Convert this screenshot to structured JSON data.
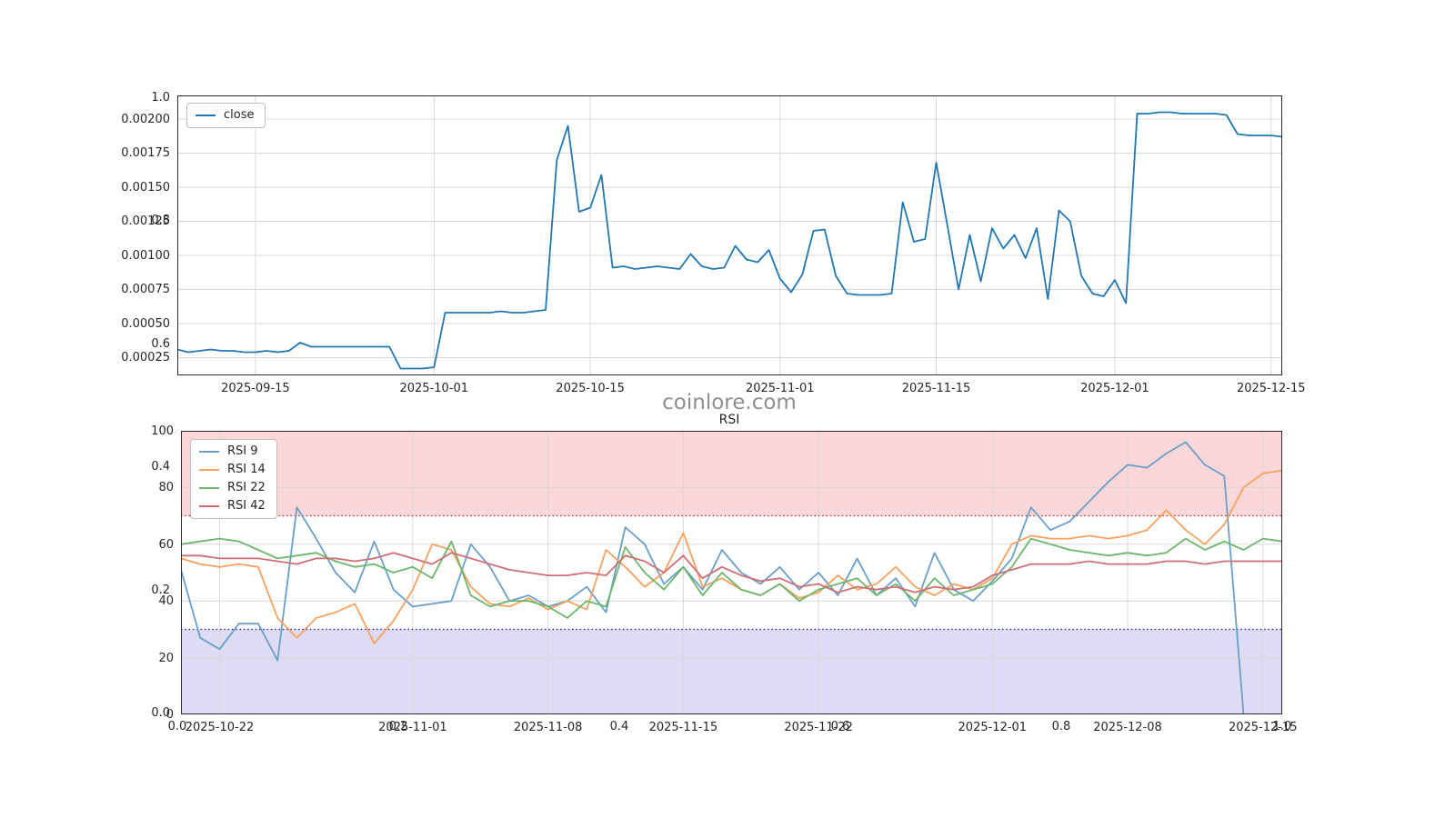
{
  "overlay": {
    "watermark": "coinlore.com",
    "left_ticks": [
      "1.0",
      "0.8",
      "0.6",
      "0.4",
      "0.2",
      "0.0"
    ],
    "bottom_ticks": [
      "0.0",
      "0.2",
      "0.4",
      "0.6",
      "0.8",
      "1.0"
    ]
  },
  "chart_data": [
    {
      "type": "line",
      "name": "price",
      "title": "",
      "legend_position": "upper-left",
      "grid": true,
      "x_start": "2025-09-08",
      "x_ticks": [
        {
          "label": "2025-09-15",
          "index": 7
        },
        {
          "label": "2025-10-01",
          "index": 23
        },
        {
          "label": "2025-10-15",
          "index": 37
        },
        {
          "label": "2025-11-01",
          "index": 54
        },
        {
          "label": "2025-11-15",
          "index": 68
        },
        {
          "label": "2025-12-01",
          "index": 84
        },
        {
          "label": "2025-12-15",
          "index": 98
        }
      ],
      "y_ticks": [
        {
          "label": "0.00025",
          "value": 0.00025
        },
        {
          "label": "0.00050",
          "value": 0.0005
        },
        {
          "label": "0.00075",
          "value": 0.00075
        },
        {
          "label": "0.00100",
          "value": 0.001
        },
        {
          "label": "0.00125",
          "value": 0.00125
        },
        {
          "label": "0.00150",
          "value": 0.0015
        },
        {
          "label": "0.00175",
          "value": 0.00175
        },
        {
          "label": "0.00200",
          "value": 0.002
        }
      ],
      "ylim": [
        0.00012,
        0.002173
      ],
      "series": [
        {
          "name": "close",
          "color": "#1f77b4",
          "values": [
            0.00031,
            0.00029,
            0.0003,
            0.00031,
            0.0003,
            0.0003,
            0.00029,
            0.00029,
            0.0003,
            0.00029,
            0.0003,
            0.00036,
            0.00033,
            0.00033,
            0.00033,
            0.00033,
            0.00033,
            0.00033,
            0.00033,
            0.00033,
            0.00017,
            0.00017,
            0.00017,
            0.00018,
            0.00058,
            0.00058,
            0.00058,
            0.00058,
            0.00058,
            0.00059,
            0.00058,
            0.00058,
            0.00059,
            0.0006,
            0.0017,
            0.00195,
            0.00132,
            0.00135,
            0.00159,
            0.00091,
            0.00092,
            0.0009,
            0.00091,
            0.00092,
            0.00091,
            0.0009,
            0.00101,
            0.00092,
            0.0009,
            0.00091,
            0.00107,
            0.00097,
            0.00095,
            0.00104,
            0.00083,
            0.00073,
            0.00086,
            0.00118,
            0.00119,
            0.00085,
            0.00072,
            0.00071,
            0.00071,
            0.00071,
            0.00072,
            0.00139,
            0.0011,
            0.00112,
            0.00168,
            0.00122,
            0.00075,
            0.00115,
            0.00081,
            0.0012,
            0.00105,
            0.00115,
            0.00098,
            0.0012,
            0.00068,
            0.00133,
            0.00125,
            0.00085,
            0.00072,
            0.0007,
            0.00082,
            0.00065,
            0.00204,
            0.00204,
            0.00205,
            0.00205,
            0.00204,
            0.00204,
            0.00204,
            0.00204,
            0.00203,
            0.00189,
            0.00188,
            0.00188,
            0.00188,
            0.00187
          ]
        }
      ]
    },
    {
      "type": "line",
      "name": "rsi",
      "title": "RSI",
      "legend_position": "upper-left",
      "grid": true,
      "x_start": "2025-10-20",
      "x_ticks": [
        {
          "label": "2025-10-22",
          "index": 2
        },
        {
          "label": "2025-11-01",
          "index": 12
        },
        {
          "label": "2025-11-08",
          "index": 19
        },
        {
          "label": "2025-11-15",
          "index": 26
        },
        {
          "label": "2025-11-22",
          "index": 33
        },
        {
          "label": "2025-12-01",
          "index": 42
        },
        {
          "label": "2025-12-08",
          "index": 49
        },
        {
          "label": "2025-12-15",
          "index": 56
        }
      ],
      "y_ticks": [
        {
          "label": "0",
          "value": 0
        },
        {
          "label": "20",
          "value": 20
        },
        {
          "label": "40",
          "value": 40
        },
        {
          "label": "60",
          "value": 60
        },
        {
          "label": "80",
          "value": 80
        },
        {
          "label": "100",
          "value": 100
        }
      ],
      "ylim": [
        0,
        100
      ],
      "bands": [
        {
          "from": 70,
          "to": 100,
          "color": "#fbd7d9"
        },
        {
          "from": 0,
          "to": 30,
          "color": "#dddcf4"
        }
      ],
      "hlines": [
        {
          "value": 70,
          "color": "#cc2222",
          "style": "dotted"
        },
        {
          "value": 30,
          "color": "#2222cc",
          "style": "dotted"
        }
      ],
      "series": [
        {
          "name": "RSI 9",
          "color": "#6a9fca",
          "values": [
            51,
            27,
            23,
            32,
            32,
            19,
            73,
            62,
            50,
            43,
            61,
            44,
            38,
            39,
            40,
            60,
            52,
            40,
            42,
            38,
            40,
            45,
            36,
            66,
            60,
            46,
            52,
            44,
            58,
            50,
            46,
            52,
            44,
            50,
            42,
            55,
            42,
            48,
            38,
            57,
            44,
            40,
            47,
            55,
            73,
            65,
            68,
            75,
            82,
            88,
            87,
            92,
            96,
            88,
            84,
            0,
            0,
            0
          ]
        },
        {
          "name": "RSI 14",
          "color": "#f8a15f",
          "values": [
            55,
            53,
            52,
            53,
            52,
            34,
            27,
            34,
            36,
            39,
            25,
            33,
            44,
            60,
            58,
            45,
            39,
            38,
            41,
            37,
            40,
            37,
            58,
            52,
            45,
            50,
            64,
            45,
            48,
            44,
            42,
            46,
            41,
            43,
            49,
            44,
            46,
            52,
            45,
            42,
            46,
            44,
            48,
            60,
            63,
            62,
            62,
            63,
            62,
            63,
            65,
            72,
            65,
            60,
            67,
            80,
            85,
            86
          ]
        },
        {
          "name": "RSI 22",
          "color": "#6cb76c",
          "values": [
            60,
            61,
            62,
            61,
            58,
            55,
            56,
            57,
            54,
            52,
            53,
            50,
            52,
            48,
            61,
            42,
            38,
            40,
            40,
            38,
            34,
            40,
            38,
            59,
            50,
            44,
            52,
            42,
            50,
            44,
            42,
            46,
            40,
            44,
            46,
            48,
            42,
            46,
            40,
            48,
            42,
            44,
            46,
            52,
            62,
            60,
            58,
            57,
            56,
            57,
            56,
            57,
            62,
            58,
            61,
            58,
            62,
            61
          ]
        },
        {
          "name": "RSI 42",
          "color": "#d06e74",
          "values": [
            56,
            56,
            55,
            55,
            55,
            54,
            53,
            55,
            55,
            54,
            55,
            57,
            55,
            53,
            57,
            55,
            53,
            51,
            50,
            49,
            49,
            50,
            49,
            56,
            54,
            50,
            56,
            48,
            52,
            49,
            47,
            48,
            45,
            46,
            43,
            45,
            44,
            45,
            43,
            45,
            44,
            45,
            49,
            51,
            53,
            53,
            53,
            54,
            53,
            53,
            53,
            54,
            54,
            53,
            54,
            54,
            54,
            54
          ]
        }
      ]
    }
  ]
}
